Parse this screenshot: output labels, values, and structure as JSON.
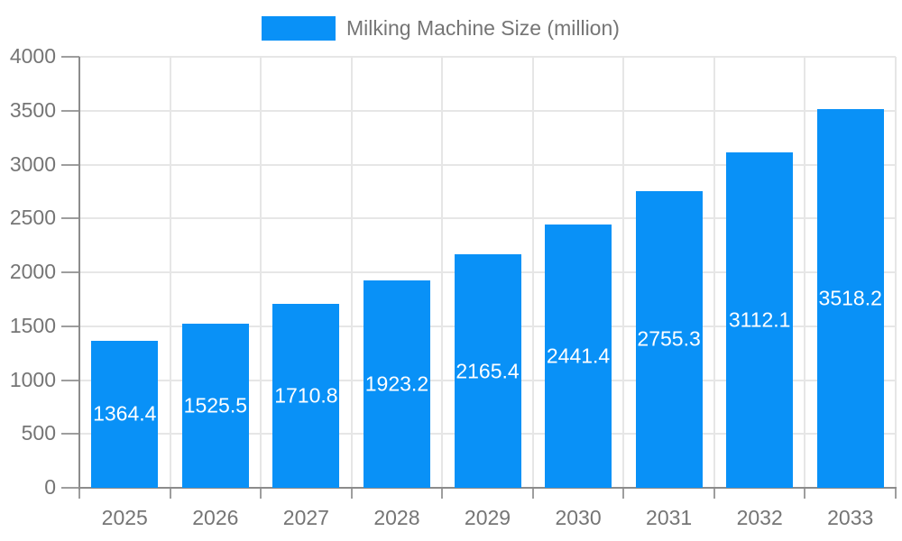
{
  "legend": {
    "label": "Milking Machine Size (million)"
  },
  "colors": {
    "bar": "#0991f7",
    "grid": "#e6e6e6",
    "axis": "#8c8c8c",
    "tick": "#9e9e9e",
    "text": "#757575",
    "value_label": "#ffffff",
    "background": "#ffffff"
  },
  "chart_data": {
    "type": "bar",
    "title": "",
    "legend": "Milking Machine Size (million)",
    "legend_position": "top",
    "categories": [
      "2025",
      "2026",
      "2027",
      "2028",
      "2029",
      "2030",
      "2031",
      "2032",
      "2033"
    ],
    "values": [
      1364.4,
      1525.5,
      1710.8,
      1923.2,
      2165.4,
      2441.4,
      2755.3,
      3112.1,
      3518.2
    ],
    "value_label_decimals": 1,
    "value_label_position": "inside-center",
    "xlabel": "",
    "ylabel": "",
    "ylim": [
      0,
      4000
    ],
    "ytick_step": 500,
    "ytick_labels": [
      "0",
      "500",
      "1000",
      "1500",
      "2000",
      "2500",
      "3000",
      "3500",
      "4000"
    ],
    "grid": true
  }
}
